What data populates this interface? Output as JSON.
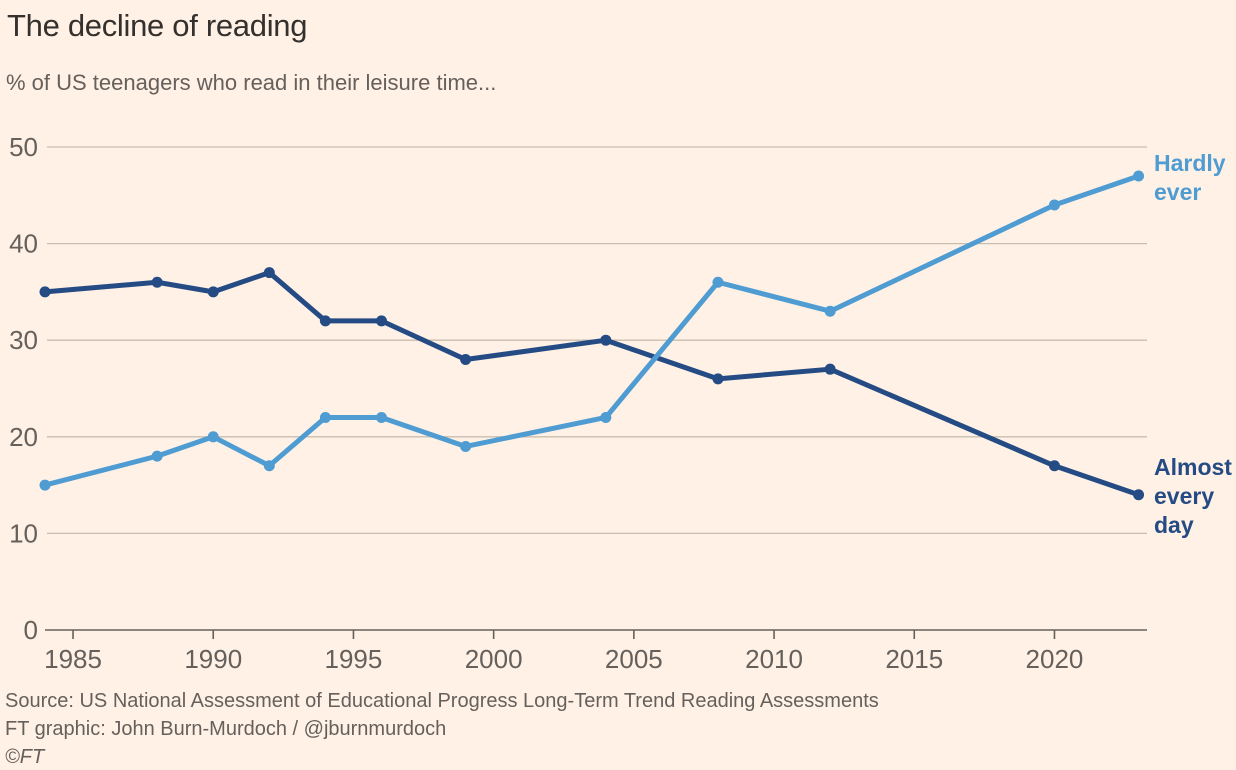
{
  "header": {
    "title": "The decline of reading",
    "subtitle": "% of US teenagers who read in their leisure time..."
  },
  "chart_data": {
    "type": "line",
    "x": [
      1984,
      1988,
      1990,
      1992,
      1994,
      1996,
      1999,
      2004,
      2008,
      2012,
      2020,
      2023
    ],
    "series": [
      {
        "id": "almost-every-day",
        "name": "Almost every day",
        "color": "#254B84",
        "values": [
          35,
          36,
          35,
          37,
          32,
          32,
          28,
          30,
          26,
          27,
          17,
          14
        ]
      },
      {
        "id": "hardly-ever",
        "name": "Hardly ever",
        "color": "#4F9CD3",
        "values": [
          15,
          18,
          20,
          17,
          22,
          22,
          19,
          22,
          36,
          33,
          44,
          47
        ]
      }
    ],
    "xlim": [
      1984,
      2023.3
    ],
    "ylim": [
      0,
      50
    ],
    "xticks": [
      1985,
      1990,
      1995,
      2000,
      2005,
      2010,
      2015,
      2020
    ],
    "yticks": [
      0,
      10,
      20,
      30,
      40,
      50
    ],
    "grid": "horizontal",
    "legend_position": "end-of-line-labels-right"
  },
  "footer": {
    "source": "Source: US National Assessment of Educational Progress Long-Term Trend Reading Assessments",
    "credit": "FT graphic: John Burn-Murdoch / @jburnmurdoch",
    "copyright": "©FT"
  },
  "colors": {
    "background": "#FFF1E5",
    "title": "#33302E",
    "subtitle": "#66605C",
    "axis": "#66605C",
    "gridline": "#C8BEAF",
    "hardly_ever": "#4F9CD3",
    "almost_every_day": "#254B84"
  }
}
